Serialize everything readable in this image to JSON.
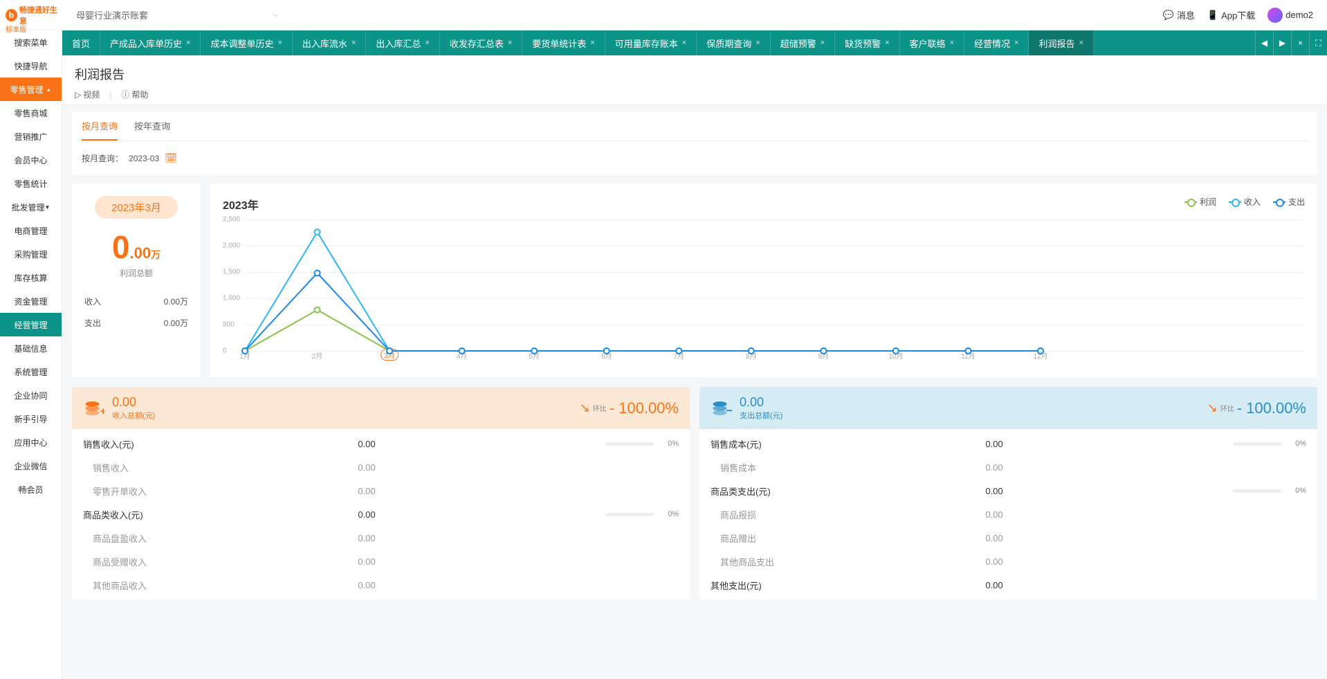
{
  "brand": {
    "name": "畅捷通好生意",
    "sub": "标准版"
  },
  "account": "母婴行业演示账套",
  "topLinks": {
    "msg": "消息",
    "app": "App下载",
    "user": "demo2"
  },
  "sidebar": [
    {
      "label": "搜索菜单",
      "type": "plain"
    },
    {
      "label": "快捷导航",
      "type": "plain"
    },
    {
      "label": "零售管理",
      "type": "orange",
      "arrow": "▲"
    },
    {
      "label": "零售商城",
      "type": "sub"
    },
    {
      "label": "营销推广",
      "type": "sub"
    },
    {
      "label": "会员中心",
      "type": "sub"
    },
    {
      "label": "零售统计",
      "type": "sub"
    },
    {
      "label": "批发管理",
      "type": "plain",
      "arrow": "▼"
    },
    {
      "label": "电商管理",
      "type": "plain"
    },
    {
      "label": "采购管理",
      "type": "plain"
    },
    {
      "label": "库存核算",
      "type": "plain"
    },
    {
      "label": "资金管理",
      "type": "plain"
    },
    {
      "label": "经营管理",
      "type": "green"
    },
    {
      "label": "基础信息",
      "type": "plain"
    },
    {
      "label": "系统管理",
      "type": "plain"
    },
    {
      "label": "企业协同",
      "type": "plain"
    },
    {
      "label": "新手引导",
      "type": "plain"
    },
    {
      "label": "应用中心",
      "type": "plain"
    },
    {
      "label": "企业微信",
      "type": "plain"
    },
    {
      "label": "畅会员",
      "type": "plain"
    }
  ],
  "tabs": [
    "首页",
    "产成品入库单历史",
    "成本调整单历史",
    "出入库流水",
    "出入库汇总",
    "收发存汇总表",
    "要货单统计表",
    "可用量库存账本",
    "保质期查询",
    "超储预警",
    "缺货预警",
    "客户联络",
    "经营情况",
    "利润报告"
  ],
  "activeTab": 13,
  "page": {
    "title": "利润报告",
    "video": "视频",
    "help": "帮助",
    "queryTabs": [
      "按月查询",
      "按年查询"
    ],
    "queryLabel": "按月查询：",
    "queryValue": "2023-03"
  },
  "summary": {
    "period": "2023年3月",
    "int": "0",
    "dec": ".00",
    "unit": "万",
    "label": "利润总额",
    "rows": [
      {
        "l": "收入",
        "v": "0.00万"
      },
      {
        "l": "支出",
        "v": "0.00万"
      }
    ]
  },
  "chart": {
    "title": "2023年",
    "legend": [
      {
        "l": "利润",
        "c": "#8bc34a"
      },
      {
        "l": "收入",
        "c": "#29b6f6"
      },
      {
        "l": "支出",
        "c": "#1e88e5"
      }
    ],
    "yticks": [
      "2,500",
      "2,000",
      "1,500",
      "1,000",
      "500",
      "0"
    ],
    "ymax": 2500,
    "months": [
      "1月",
      "2月",
      "3月",
      "4月",
      "5月",
      "6月",
      "7月",
      "8月",
      "9月",
      "10月",
      "11月",
      "12月"
    ],
    "currentMonth": 2,
    "series": {
      "profit": {
        "color": "#8bc34a",
        "data": [
          0,
          780,
          0,
          0,
          0,
          0,
          0,
          0,
          0,
          0,
          0,
          0
        ]
      },
      "revenue": {
        "color": "#29b6f6",
        "data": [
          0,
          2260,
          0,
          0,
          0,
          0,
          0,
          0,
          0,
          0,
          0,
          0
        ]
      },
      "expense": {
        "color": "#1e88e5",
        "data": [
          0,
          1480,
          0,
          0,
          0,
          0,
          0,
          0,
          0,
          0,
          0,
          0
        ]
      }
    }
  },
  "panels": [
    {
      "theme": "orange",
      "icon": "coins-plus",
      "value": "0.00",
      "label": "收入总额(元)",
      "hb": "环比",
      "pct": "- 100.00%",
      "rows": [
        {
          "t": "main",
          "l": "销售收入(元)",
          "v": "0.00",
          "p": "0%"
        },
        {
          "t": "sub",
          "l": "销售收入",
          "v": "0.00"
        },
        {
          "t": "sub",
          "l": "零售开单收入",
          "v": "0.00"
        },
        {
          "t": "main",
          "l": "商品类收入(元)",
          "v": "0.00",
          "p": "0%"
        },
        {
          "t": "sub",
          "l": "商品盘盈收入",
          "v": "0.00"
        },
        {
          "t": "sub",
          "l": "商品受赠收入",
          "v": "0.00"
        },
        {
          "t": "sub",
          "l": "其他商品收入",
          "v": "0.00"
        }
      ]
    },
    {
      "theme": "blue",
      "icon": "coins-minus",
      "value": "0.00",
      "label": "支出总额(元)",
      "hb": "环比",
      "pct": "- 100.00%",
      "rows": [
        {
          "t": "main",
          "l": "销售成本(元)",
          "v": "0.00",
          "p": "0%"
        },
        {
          "t": "sub",
          "l": "销售成本",
          "v": "0.00"
        },
        {
          "t": "main",
          "l": "商品类支出(元)",
          "v": "0.00",
          "p": "0%"
        },
        {
          "t": "sub",
          "l": "商品报损",
          "v": "0.00"
        },
        {
          "t": "sub",
          "l": "商品赠出",
          "v": "0.00"
        },
        {
          "t": "sub",
          "l": "其他商品支出",
          "v": "0.00"
        },
        {
          "t": "main",
          "l": "其他支出(元)",
          "v": "0.00"
        }
      ]
    }
  ]
}
